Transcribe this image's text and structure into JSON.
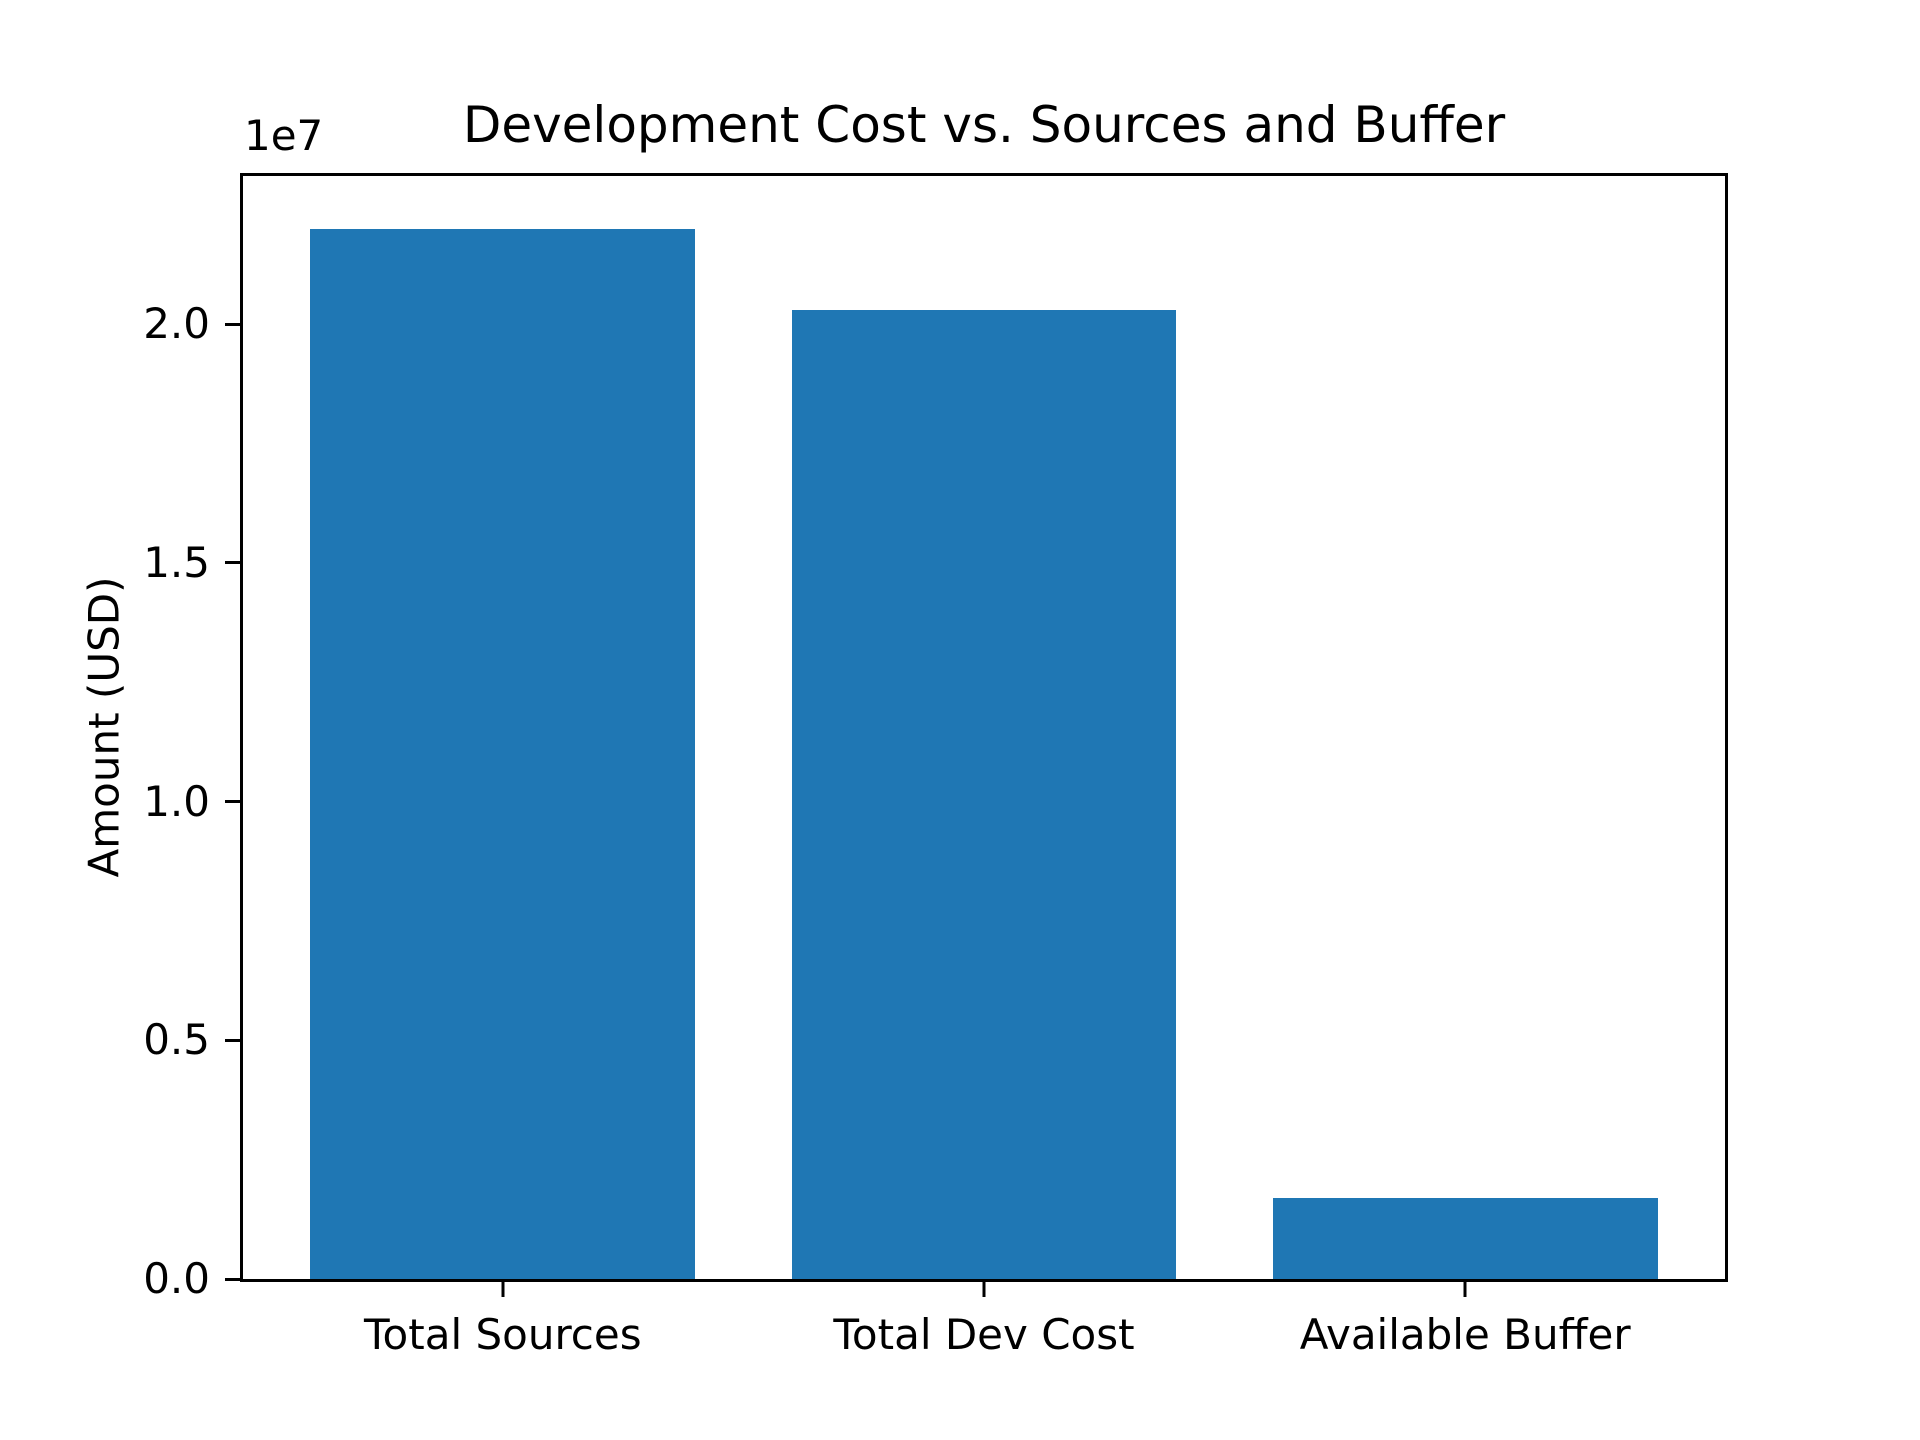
{
  "figure": {
    "background": "#ffffff",
    "text_color": "#000000",
    "axis_color": "#000000"
  },
  "chart_data": {
    "type": "bar",
    "title": "Development Cost vs. Sources and Buffer",
    "xlabel": "",
    "ylabel": "Amount (USD)",
    "y_offset_label": "1e7",
    "categories": [
      "Total Sources",
      "Total Dev Cost",
      "Available Buffer"
    ],
    "values": [
      22000000,
      20300000,
      1700000
    ],
    "bar_color": "#1f77b4",
    "bar_width_ratio": 0.8,
    "ylim": [
      0,
      23100000
    ],
    "yticks": [
      {
        "value": 0,
        "label": "0.0"
      },
      {
        "value": 5000000,
        "label": "0.5"
      },
      {
        "value": 10000000,
        "label": "1.0"
      },
      {
        "value": 15000000,
        "label": "1.5"
      },
      {
        "value": 20000000,
        "label": "2.0"
      }
    ],
    "grid": false,
    "legend": "none"
  }
}
